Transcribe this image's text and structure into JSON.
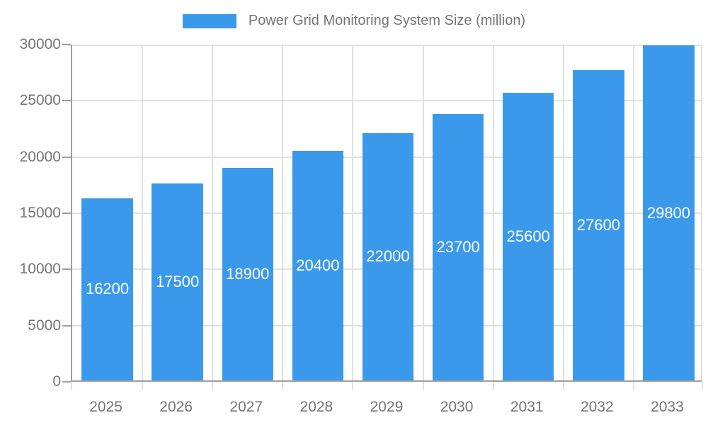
{
  "chart_data": {
    "type": "bar",
    "title": "Power Grid Monitoring System Size (million)",
    "categories": [
      "2025",
      "2026",
      "2027",
      "2028",
      "2029",
      "2030",
      "2031",
      "2032",
      "2033"
    ],
    "series": [
      {
        "name": "Power Grid Monitoring System Size (million)",
        "values": [
          16200,
          17500,
          18900,
          20400,
          22000,
          23700,
          25600,
          27600,
          29800
        ]
      }
    ],
    "value_labels_shown": true,
    "xlabel": "",
    "ylabel": "",
    "ylim": [
      0,
      30000
    ],
    "yticks": [
      0,
      5000,
      10000,
      15000,
      20000,
      25000,
      30000
    ],
    "grid": true,
    "legend_position": "top-center"
  },
  "colors": {
    "bar": "#3B99EC",
    "bar_label": "#FFFFFF",
    "axis_text": "#757575",
    "axis_line": "#9E9E9E",
    "gridline": "#E0E0E0",
    "background": "#FFFFFF"
  }
}
